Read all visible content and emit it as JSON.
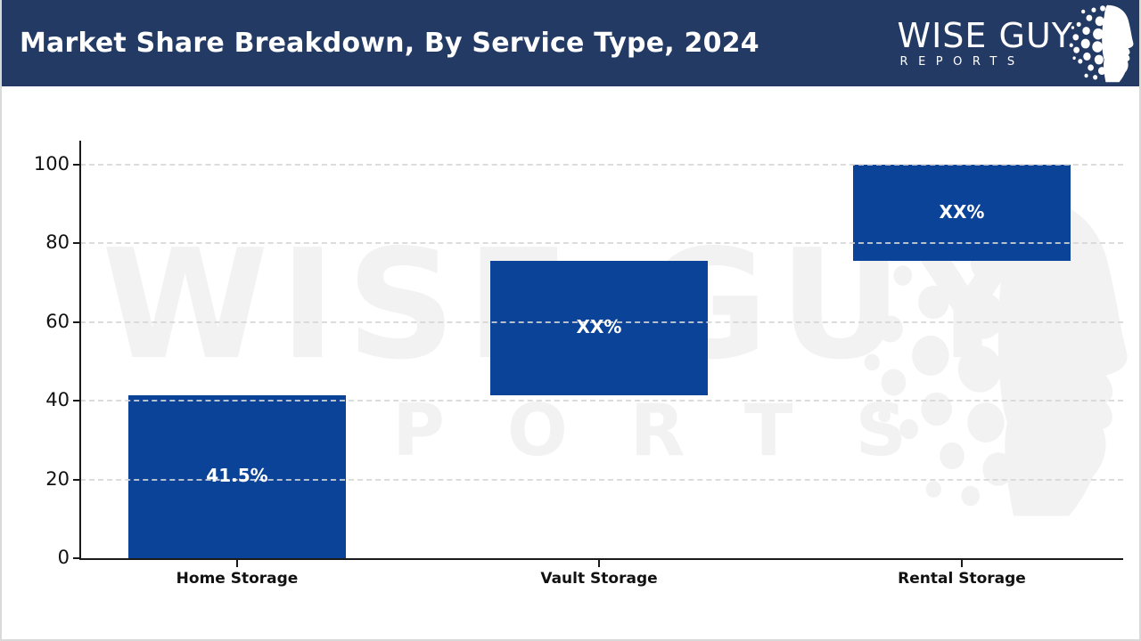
{
  "header": {
    "title": "Market Share Breakdown, By Service Type, 2024",
    "logo": {
      "wordmark": "WISE GUY",
      "subtext": "REPORTS",
      "face_icon": "dotted-head-profile"
    }
  },
  "watermark": {
    "wordmark": "WISE GUY",
    "subtext": "REPORTS",
    "face_icon": "dotted-head-profile"
  },
  "chart_data": {
    "type": "bar",
    "subtype": "floating-waterfall-bars",
    "title": "Market Share Breakdown, By Service Type, 2024",
    "categories": [
      "Home Storage",
      "Vault Storage",
      "Rental Storage"
    ],
    "series": [
      {
        "name": "Market share (%)",
        "segments": [
          {
            "category": "Home Storage",
            "start": 0,
            "end": 41.5,
            "label": "41.5%"
          },
          {
            "category": "Vault Storage",
            "start": 41.5,
            "end": 75.5,
            "label": "XX%"
          },
          {
            "category": "Rental Storage",
            "start": 75.5,
            "end": 100,
            "label": "XX%"
          }
        ]
      }
    ],
    "xlabel": "",
    "ylabel": "",
    "ylim": [
      0,
      106
    ],
    "yticks": [
      0,
      20,
      40,
      60,
      80,
      100
    ],
    "grid": "horizontal-dashed",
    "legend": "none"
  },
  "colors": {
    "header_bg": "#233a64",
    "bar": "#0b4398",
    "bar_label": "#ffffff",
    "axis": "#1a1a1a",
    "grid": "#d8d8d8",
    "text": "#111111",
    "watermark": "#f2f2f2",
    "page_border": "#d9d9d9"
  }
}
